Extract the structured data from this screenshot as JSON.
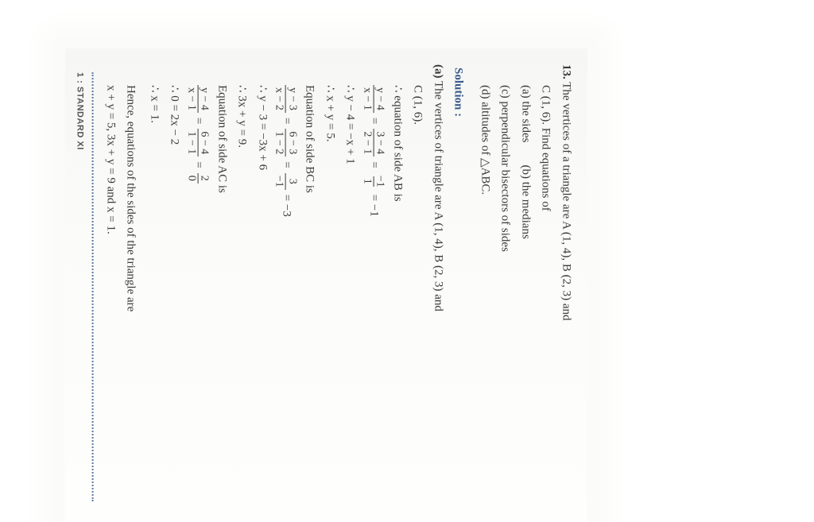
{
  "colors": {
    "text": "#3a3a3a",
    "solution_heading": "#3a5a8a",
    "rule": "#5a7aa8",
    "bg_light": "#fefefd",
    "bg_shadow": "#f6f6f4"
  },
  "typography": {
    "body_family": "Georgia, Times New Roman, serif",
    "body_size_pt": 15,
    "footer_size_pt": 11,
    "line_height": 1.7
  },
  "question": {
    "number": "13.",
    "stem_line1": "The vertices of a triangle are A (1, 4), B (2, 3) and",
    "stem_line2": "C (1, 6). Find equations of",
    "options": {
      "a": "(a) the sides",
      "b": "(b) the medians",
      "c": "(c) perpendicular bisectors of sides",
      "d": "(d) altitudes of △ABC."
    }
  },
  "solution": {
    "heading": "Solution :",
    "part_label": "(a)",
    "vertices_line1": "The vertices of triangle are A (1, 4), B (2, 3) and",
    "vertices_line2": "C (1, 6).",
    "ab": {
      "intro": "∴ equation of side AB is",
      "frac1": {
        "num": "y − 4",
        "den": "x − 1"
      },
      "eq1": "=",
      "frac2": {
        "num": "3 − 4",
        "den": "2 − 1"
      },
      "eq2": "=",
      "frac3": {
        "num": "−1",
        "den": "1"
      },
      "tail": "= −1",
      "step1": "∴ y − 4 = −x + 1",
      "step2": "∴ x + y = 5."
    },
    "bc": {
      "intro": "Equation of side BC is",
      "frac1": {
        "num": "y − 3",
        "den": "x − 2"
      },
      "eq1": "=",
      "frac2": {
        "num": "6 − 3",
        "den": "1 − 2"
      },
      "eq2": "=",
      "frac3": {
        "num": "3",
        "den": "−1"
      },
      "tail": "= −3",
      "step1": "∴ y − 3 = −3x + 6",
      "step2": "∴ 3x + y = 9."
    },
    "ac": {
      "intro": "Equation of side AC is",
      "frac1": {
        "num": "y − 4",
        "den": "x − 1"
      },
      "eq1": "=",
      "frac2": {
        "num": "6 − 4",
        "den": "1 − 1"
      },
      "eq2": "=",
      "frac3": {
        "num": "2",
        "den": "0"
      },
      "tail": "",
      "step1": "∴ 0 = 2x − 2",
      "step2": "∴ x = 1."
    },
    "hence_line1": "Hence, equations of the sides of the triangle are",
    "hence_line2": "x + y = 5,  3x + y = 9 and x = 1."
  },
  "footer": {
    "left": "1 : STANDARD XI",
    "right": ""
  }
}
